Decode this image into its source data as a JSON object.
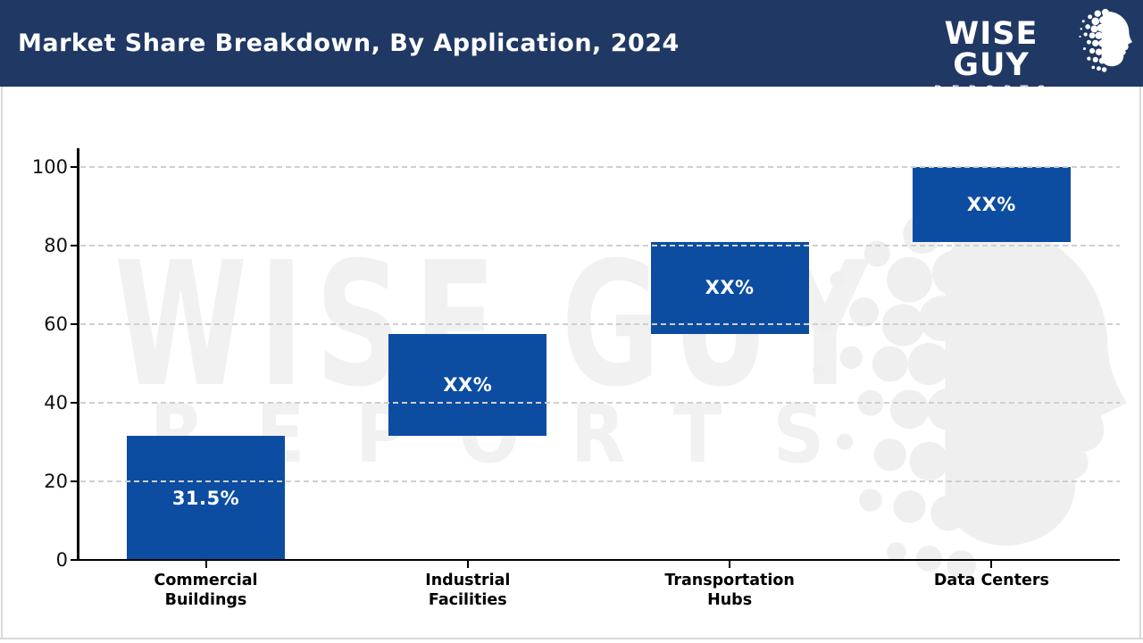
{
  "header": {
    "title": "Market Share Breakdown, By Application, 2024",
    "bg_color": "#203864",
    "logo": {
      "name": "WISE GUY",
      "sub": "REPORTS"
    }
  },
  "watermark": {
    "name": "WISE GUY",
    "sub": "REPORTS"
  },
  "chart_data": {
    "type": "bar",
    "subtype": "waterfall",
    "title": "Market Share Breakdown, By Application, 2024",
    "categories": [
      "Commercial\nBuildings",
      "Industrial\nFacilities",
      "Transportation\nHubs",
      "Data Centers"
    ],
    "segments": [
      {
        "category": "Commercial Buildings",
        "start": 0,
        "end": 31.5,
        "label": "31.5%"
      },
      {
        "category": "Industrial Facilities",
        "start": 31.5,
        "end": 57.5,
        "label": "XX%"
      },
      {
        "category": "Transportation Hubs",
        "start": 57.5,
        "end": 81,
        "label": "XX%"
      },
      {
        "category": "Data Centers",
        "start": 81,
        "end": 100,
        "label": "XX%"
      }
    ],
    "yticks": [
      0,
      20,
      40,
      60,
      80,
      100
    ],
    "ylim": [
      0,
      105
    ],
    "xlabel": "",
    "ylabel": "",
    "legend": "none",
    "grid": "horizontal-dashed",
    "bar_color": "#0c4da2",
    "bar_label_color": "#ffffff",
    "axis_color": "#000000",
    "gridline_color": "#cfcfcf"
  }
}
